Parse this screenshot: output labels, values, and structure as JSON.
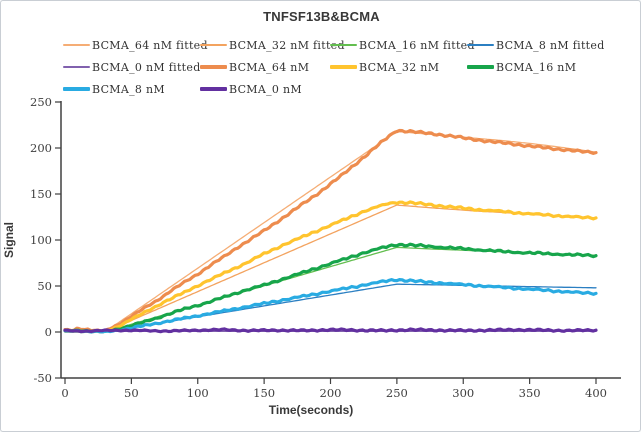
{
  "frame": {
    "background": "#ffffff",
    "border_color": "#c9ced4"
  },
  "title": "TNFSF13B&BCMA",
  "chart_data": {
    "type": "line",
    "title": "TNFSF13B&BCMA",
    "xlabel": "Time(seconds)",
    "ylabel": "Signal",
    "xlim": [
      0,
      420
    ],
    "ylim": [
      -50,
      250
    ],
    "xticks": [
      0,
      50,
      100,
      150,
      200,
      250,
      300,
      350,
      400
    ],
    "yticks": [
      -50,
      0,
      50,
      100,
      150,
      200,
      250
    ],
    "grid": false,
    "legend_position": "top-left",
    "axis_color": "#404040",
    "tick_label_color": "#404040",
    "phases": {
      "baseline_end_s": 30,
      "association_peak_s": 250,
      "end_s": 400
    },
    "series": [
      {
        "name": "BCMA_64 nM fitted",
        "color": "#F5AD75",
        "style": "thin",
        "noise": 0,
        "legend_row": 0,
        "legend_col": 0,
        "t": [
          0,
          30,
          250,
          270,
          290,
          310,
          330,
          350,
          370,
          400
        ],
        "v": [
          0,
          0,
          218,
          215.5,
          213,
          210.5,
          208,
          205,
          201.5,
          195.5
        ]
      },
      {
        "name": "BCMA_32 nM fitted",
        "color": "#F3A35F",
        "style": "thin",
        "noise": 0,
        "legend_row": 0,
        "legend_col": 1,
        "t": [
          0,
          30,
          250,
          280,
          310,
          340,
          370,
          400
        ],
        "v": [
          0,
          0,
          138,
          134.5,
          131.5,
          129,
          126,
          123.5
        ]
      },
      {
        "name": "BCMA_16 nM fitted",
        "color": "#63BE4F",
        "style": "thin",
        "noise": 0,
        "legend_row": 0,
        "legend_col": 2,
        "t": [
          0,
          30,
          250,
          280,
          310,
          340,
          370,
          400
        ],
        "v": [
          0,
          0,
          92,
          90,
          88.3,
          86.6,
          85,
          83.5
        ]
      },
      {
        "name": "BCMA_8 nM fitted",
        "color": "#2B7FC2",
        "style": "thin",
        "noise": 0,
        "legend_row": 0,
        "legend_col": 3,
        "t": [
          0,
          30,
          250,
          280,
          310,
          340,
          370,
          400
        ],
        "v": [
          0,
          0,
          52,
          51.2,
          50.4,
          49.6,
          48.8,
          48
        ]
      },
      {
        "name": "BCMA_0 nM fitted",
        "color": "#8161AE",
        "style": "thin",
        "noise": 0,
        "legend_row": 1,
        "legend_col": 0,
        "t": [
          0,
          400
        ],
        "v": [
          0.8,
          0.8
        ]
      },
      {
        "name": "BCMA_64 nM",
        "color": "#ED8C4E",
        "style": "thick",
        "noise": 1.1,
        "legend_row": 1,
        "legend_col": 1,
        "t": [
          0,
          5,
          10,
          15,
          20,
          25,
          30,
          40,
          50,
          60,
          70,
          80,
          90,
          100,
          110,
          120,
          130,
          140,
          150,
          160,
          170,
          180,
          190,
          200,
          210,
          220,
          230,
          240,
          245,
          250,
          260,
          270,
          280,
          290,
          300,
          310,
          320,
          330,
          340,
          350,
          360,
          370,
          380,
          390,
          400
        ],
        "v": [
          2,
          2,
          4,
          3,
          2,
          1,
          1,
          8,
          17,
          26,
          35,
          45,
          54,
          63,
          73,
          82,
          92,
          101,
          110,
          120,
          130,
          140,
          150,
          161,
          172,
          184,
          196,
          208,
          214,
          219,
          218,
          216.5,
          215,
          213,
          211,
          209,
          207,
          205.5,
          204,
          202,
          200.5,
          199,
          197.5,
          196,
          195
        ]
      },
      {
        "name": "BCMA_32 nM",
        "color": "#FFC42E",
        "style": "thick",
        "noise": 1.1,
        "legend_row": 1,
        "legend_col": 2,
        "t": [
          0,
          10,
          20,
          30,
          40,
          50,
          60,
          75,
          90,
          105,
          120,
          135,
          150,
          165,
          180,
          195,
          210,
          225,
          235,
          245,
          250,
          260,
          270,
          280,
          290,
          300,
          315,
          330,
          345,
          360,
          375,
          390,
          400
        ],
        "v": [
          1,
          1.5,
          0.5,
          0,
          6,
          14,
          21,
          33,
          43,
          54,
          64,
          74,
          85,
          95,
          104,
          113,
          122,
          131,
          136,
          140,
          141,
          140.5,
          139,
          137.5,
          136,
          134.5,
          132.5,
          131,
          129,
          127.5,
          126,
          124.5,
          124
        ]
      },
      {
        "name": "BCMA_16 nM",
        "color": "#17A54B",
        "style": "thick",
        "noise": 1.1,
        "legend_row": 1,
        "legend_col": 3,
        "t": [
          0,
          10,
          20,
          30,
          45,
          60,
          75,
          90,
          105,
          120,
          135,
          150,
          165,
          180,
          195,
          210,
          225,
          240,
          250,
          260,
          275,
          290,
          305,
          320,
          335,
          350,
          365,
          380,
          400
        ],
        "v": [
          1,
          2,
          1,
          0,
          5,
          11,
          18,
          25,
          31,
          38,
          45,
          51,
          58,
          65,
          72,
          79,
          86,
          92,
          95,
          94.5,
          93,
          91.5,
          90,
          88.5,
          87,
          86,
          85,
          84,
          83
        ]
      },
      {
        "name": "BCMA_8 nM",
        "color": "#29ABE2",
        "style": "thick",
        "noise": 1.1,
        "legend_row": 2,
        "legend_col": 0,
        "t": [
          0,
          10,
          20,
          30,
          45,
          60,
          75,
          90,
          105,
          120,
          135,
          150,
          165,
          180,
          195,
          210,
          225,
          240,
          250,
          258,
          270,
          285,
          300,
          315,
          330,
          345,
          360,
          375,
          390,
          400
        ],
        "v": [
          1,
          1.5,
          0.5,
          0,
          3,
          7,
          11,
          15,
          19,
          23,
          27,
          31,
          35,
          39,
          43,
          47,
          51,
          55,
          57,
          56,
          54.5,
          53,
          51.5,
          50,
          48.5,
          47,
          45.5,
          44,
          42.5,
          42
        ]
      },
      {
        "name": "BCMA_0 nM",
        "color": "#6230A0",
        "style": "thick",
        "noise": 0.9,
        "legend_row": 2,
        "legend_col": 1,
        "t": [
          0,
          20,
          40,
          60,
          80,
          100,
          120,
          140,
          160,
          180,
          200,
          220,
          240,
          260,
          280,
          300,
          320,
          340,
          360,
          380,
          400
        ],
        "v": [
          1.5,
          1,
          2,
          1.5,
          1,
          2,
          2.5,
          1.5,
          2,
          1.5,
          2.5,
          2,
          1.5,
          2.5,
          2,
          1.5,
          2,
          2.5,
          2,
          1.5,
          2
        ]
      }
    ]
  }
}
